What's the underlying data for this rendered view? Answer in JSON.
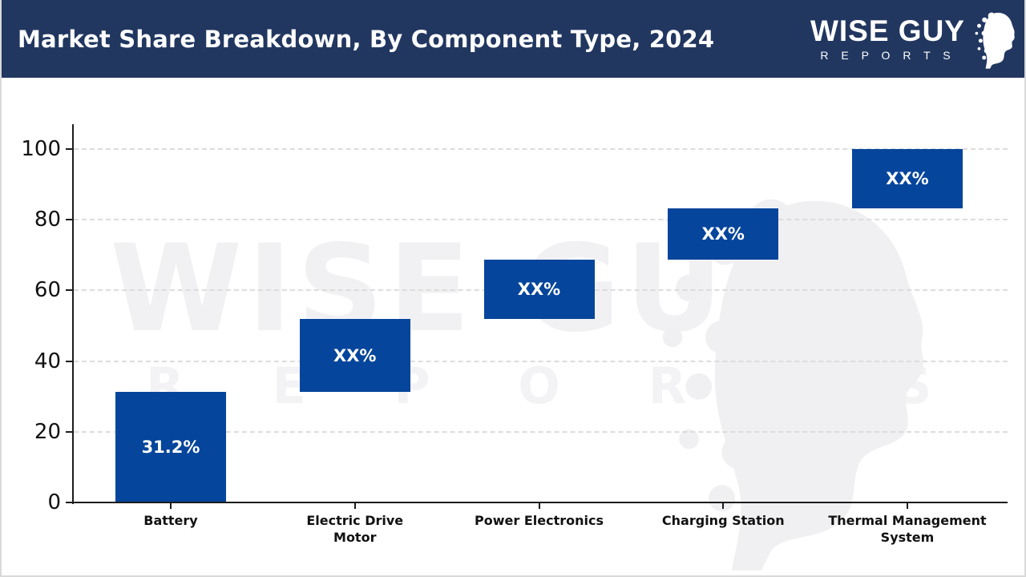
{
  "header": {
    "title": "Market Share Breakdown, By Component Type, 2024",
    "brand_line1": "WISE GUY",
    "brand_line2": "R E P O R T S"
  },
  "watermark": {
    "line1": "WISE GUY",
    "line2": "R E P O R T S"
  },
  "colors": {
    "header_bg": "#213760",
    "bar": "#05459c",
    "bar_label": "#ffffff",
    "axis": "#1c1c1c",
    "gridline": "#dcdcdc",
    "tick_label": "#111111",
    "watermark": "#f1f1f3"
  },
  "chart_data": {
    "type": "bar",
    "subtype": "waterfall",
    "title": "Market Share Breakdown, By Component Type, 2024",
    "categories": [
      "Battery",
      "Electric Drive Motor",
      "Power Electronics",
      "Charging Station",
      "Thermal Management System"
    ],
    "bars": [
      {
        "category": "Battery",
        "lines": [
          "Battery"
        ],
        "start": 0,
        "end": 31.2,
        "label": "31.2%"
      },
      {
        "category": "Electric Drive Motor",
        "lines": [
          "Electric Drive",
          "Motor"
        ],
        "start": 31.2,
        "end": 52.0,
        "label": "XX%"
      },
      {
        "category": "Power Electronics",
        "lines": [
          "Power Electronics"
        ],
        "start": 52.0,
        "end": 68.8,
        "label": "XX%"
      },
      {
        "category": "Charging Station",
        "lines": [
          "Charging Station"
        ],
        "start": 68.8,
        "end": 83.2,
        "label": "XX%"
      },
      {
        "category": "Thermal Management System",
        "lines": [
          "Thermal Management",
          "System"
        ],
        "start": 83.2,
        "end": 100,
        "label": "XX%"
      }
    ],
    "yticks": [
      0,
      20,
      40,
      60,
      80,
      100
    ],
    "ylim": [
      0,
      107
    ],
    "xlabel": "",
    "ylabel": "",
    "grid": "horizontal-dashed",
    "legend": "none",
    "bar_color": "#05459c",
    "value_label_color": "#ffffff"
  }
}
